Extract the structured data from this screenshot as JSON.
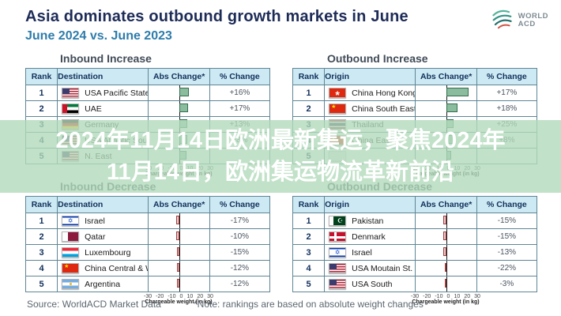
{
  "header": {
    "title": "Asia dominates outbound growth markets in June",
    "subtitle": "June 2024 vs. June 2023",
    "logo": {
      "line1": "WORLD",
      "line2": "ACD"
    }
  },
  "overlay": {
    "line1": "2024年11月14日欧洲最新集运，聚焦2024年",
    "line2": "11月14日，欧洲集运物流革新前沿"
  },
  "axis": {
    "range": [
      -30,
      30
    ],
    "ticks": [
      "-30",
      "-20",
      "-10",
      "0",
      "10",
      "20",
      "30"
    ],
    "label": "Chargeable weight (in kg)"
  },
  "footer": {
    "source": "Source: WorldACD Market Data",
    "note": "*Note: rankings are based on absolute weight changes"
  },
  "colors": {
    "title": "#1d2b57",
    "subtitle": "#2d7cab",
    "table_header_bg": "#cde9f3",
    "increase_bar": "#8cbc9e",
    "increase_bar_border": "#2f6f4f",
    "decrease_bar": "#eec6ca",
    "decrease_bar_border": "#9c3f3f",
    "overlay_bg": "#b2dabaCC",
    "overlay_text": "#ffffff"
  },
  "chart_data": [
    {
      "id": "inbound-increase",
      "type": "table",
      "title": "Inbound Increase",
      "direction": "increase",
      "columns": [
        "Rank",
        "Destination",
        "Abs Change*",
        "% Change"
      ],
      "rows": [
        {
          "rank": "1",
          "flag": "us",
          "name": "USA Pacific States",
          "abs": 10,
          "pct": "+16%"
        },
        {
          "rank": "2",
          "flag": "ae",
          "name": "UAE",
          "abs": 9,
          "pct": "+17%"
        },
        {
          "rank": "3",
          "flag": "de",
          "name": "Germany",
          "abs": 8,
          "pct": "+13%"
        },
        {
          "rank": "4",
          "flag": "us",
          "name": "USA Atlantic South",
          "abs": 8,
          "pct": "+8%"
        },
        {
          "rank": "5",
          "flag": "us",
          "name": "N. East",
          "abs": 7,
          "pct": ""
        }
      ]
    },
    {
      "id": "outbound-increase",
      "type": "table",
      "title": "Outbound Increase",
      "direction": "increase",
      "columns": [
        "Rank",
        "Origin",
        "Abs Change*",
        "% Change"
      ],
      "rows": [
        {
          "rank": "1",
          "flag": "hk",
          "name": "China Hong Kong",
          "abs": 22,
          "pct": "+17%"
        },
        {
          "rank": "2",
          "flag": "cn",
          "name": "China South East",
          "abs": 11,
          "pct": "+18%"
        },
        {
          "rank": "3",
          "flag": "th",
          "name": "Thailand",
          "abs": 7,
          "pct": "+25%"
        },
        {
          "rank": "4",
          "flag": "cn",
          "name": "China East",
          "abs": 7,
          "pct": "+8%"
        },
        {
          "rank": "5",
          "flag": "none",
          "name": "",
          "abs": 5,
          "pct": ""
        }
      ]
    },
    {
      "id": "inbound-decrease",
      "type": "table",
      "title": "Inbound Decrease",
      "direction": "decrease",
      "columns": [
        "Rank",
        "Destination",
        "Abs Change*",
        "% Change"
      ],
      "rows": [
        {
          "rank": "1",
          "flag": "il",
          "name": "Israel",
          "abs": -3,
          "pct": "-17%"
        },
        {
          "rank": "2",
          "flag": "qa",
          "name": "Qatar",
          "abs": -3,
          "pct": "-10%"
        },
        {
          "rank": "3",
          "flag": "lu",
          "name": "Luxembourg",
          "abs": -2,
          "pct": "-15%"
        },
        {
          "rank": "4",
          "flag": "cn",
          "name": "China Central & West",
          "abs": -2,
          "pct": "-12%"
        },
        {
          "rank": "5",
          "flag": "ar",
          "name": "Argentina",
          "abs": -2,
          "pct": "-12%"
        }
      ]
    },
    {
      "id": "outbound-decrease",
      "type": "table",
      "title": "Outbound Decrease",
      "direction": "decrease",
      "columns": [
        "Rank",
        "Origin",
        "Abs Change*",
        "% Change"
      ],
      "rows": [
        {
          "rank": "1",
          "flag": "pk",
          "name": "Pakistan",
          "abs": -3,
          "pct": "-15%"
        },
        {
          "rank": "2",
          "flag": "dk",
          "name": "Denmark",
          "abs": -3,
          "pct": "-15%"
        },
        {
          "rank": "3",
          "flag": "il",
          "name": "Israel",
          "abs": -3,
          "pct": "-13%"
        },
        {
          "rank": "4",
          "flag": "us",
          "name": "USA Moutain St.",
          "abs": -1,
          "pct": "-22%"
        },
        {
          "rank": "5",
          "flag": "us",
          "name": "USA South",
          "abs": -1,
          "pct": "-3%"
        }
      ]
    }
  ]
}
